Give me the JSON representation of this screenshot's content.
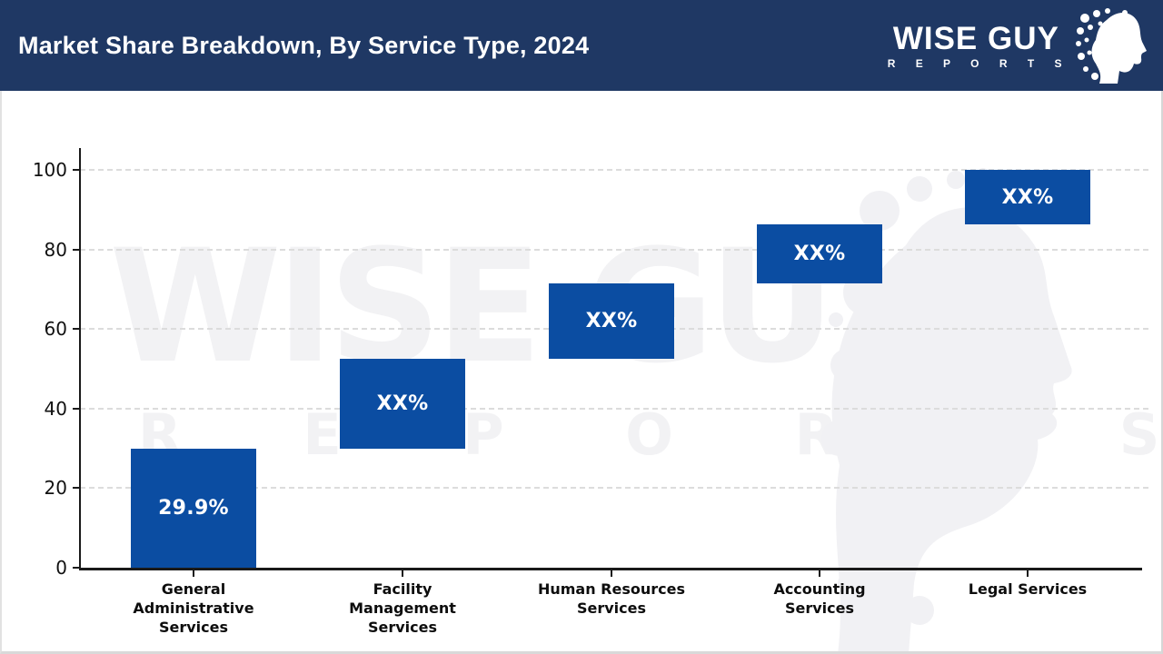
{
  "header": {
    "title": "Market Share Breakdown, By Service Type, 2024",
    "bg_color": "#1F3864",
    "logo": {
      "line1": "WISE GUY",
      "line2": "R E P O R T S",
      "head_icon": "dotted-head-profile"
    }
  },
  "watermark": {
    "line1": "WISE GUY",
    "line2": "R E P O R T S",
    "head_graphic": "dotted-head-profile"
  },
  "chart_data": {
    "type": "bar",
    "subtype": "waterfall",
    "title": "Market Share Breakdown, By Service Type, 2024",
    "categories": [
      "General Administrative Services",
      "Facility Management Services",
      "Human Resources Services",
      "Accounting Services",
      "Legal Services"
    ],
    "category_lines": [
      [
        "General",
        "Administrative",
        "Services"
      ],
      [
        "Facility",
        "Management",
        "Services"
      ],
      [
        "Human Resources",
        "Services"
      ],
      [
        "Accounting",
        "Services"
      ],
      [
        "Legal Services"
      ]
    ],
    "segments": [
      {
        "start": 0,
        "end": 29.9,
        "label": "29.9%"
      },
      {
        "start": 29.9,
        "end": 52.5,
        "label": "XX%"
      },
      {
        "start": 52.5,
        "end": 71.5,
        "label": "XX%"
      },
      {
        "start": 71.5,
        "end": 86.2,
        "label": "XX%"
      },
      {
        "start": 86.2,
        "end": 100,
        "label": "XX%"
      }
    ],
    "yticks": [
      0,
      20,
      40,
      60,
      80,
      100
    ],
    "ytick_labels": [
      "0",
      "20",
      "40",
      "60",
      "80",
      "100"
    ],
    "ylim": [
      0,
      100
    ],
    "xlabel": "",
    "ylabel": "",
    "bar_color": "#0B4DA2",
    "label_color": "#ffffff",
    "axis_color": "#1a1a1a",
    "grid": "dashed-horizontal",
    "legend": "none"
  }
}
